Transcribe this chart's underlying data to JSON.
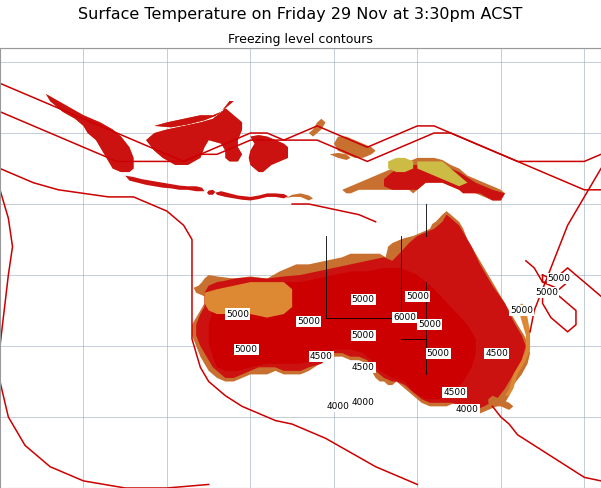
{
  "title": "Surface Temperature on Friday 29 Nov at 3:30pm ACST",
  "subtitle": "Freezing level contours",
  "title_fontsize": 11.5,
  "subtitle_fontsize": 9,
  "ocean_color": "#b8c8e0",
  "hot_red": "#cc1111",
  "dark_red": "#bb0000",
  "orange_brown": "#c87030",
  "warm_orange": "#dd8833",
  "yellow_green": "#ccbb44",
  "contour_color": "#cc0000",
  "grid_color": "#9aaabb",
  "title_border_color": "#888888",
  "fig_width": 6.01,
  "fig_height": 4.88,
  "dpi": 100,
  "lon_min": 90,
  "lon_max": 162,
  "lat_min": -50,
  "lat_max": 12
}
